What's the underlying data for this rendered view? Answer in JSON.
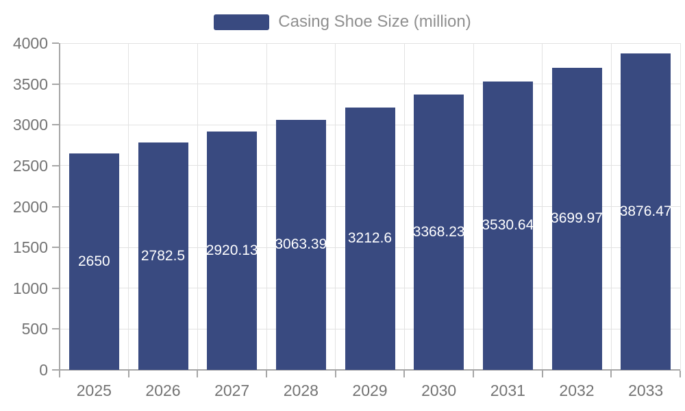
{
  "chart_data": {
    "type": "bar",
    "title": "",
    "legend": "Casing Shoe Size (million)",
    "legend_position": "top-center",
    "categories": [
      "2025",
      "2026",
      "2027",
      "2028",
      "2029",
      "2030",
      "2031",
      "2032",
      "2033"
    ],
    "series": [
      {
        "name": "Casing Shoe Size (million)",
        "values": [
          2650,
          2782.5,
          2920.13,
          3063.39,
          3212.6,
          3368.23,
          3530.64,
          3699.97,
          3876.47
        ],
        "labels": [
          "2650",
          "2782.5",
          "2920.13",
          "3063.39",
          "3212.6",
          "3368.23",
          "3530.64",
          "3699.97",
          "3876.47"
        ]
      }
    ],
    "xlabel": "",
    "ylabel": "",
    "ylim": [
      0,
      4000
    ],
    "yticks": [
      0,
      500,
      1000,
      1500,
      2000,
      2500,
      3000,
      3500,
      4000
    ],
    "grid": true,
    "grid_vertical": true,
    "bar_label_position": "inside-middle",
    "colors": {
      "bar": "#394A80",
      "grid_line": "#E2E2E2",
      "axis_line": "#A6A6A6",
      "axis_text": "#737373",
      "legend_text": "#8F8F8F",
      "bar_label_text": "#FFFFFF",
      "background": "#FFFFFF"
    }
  }
}
